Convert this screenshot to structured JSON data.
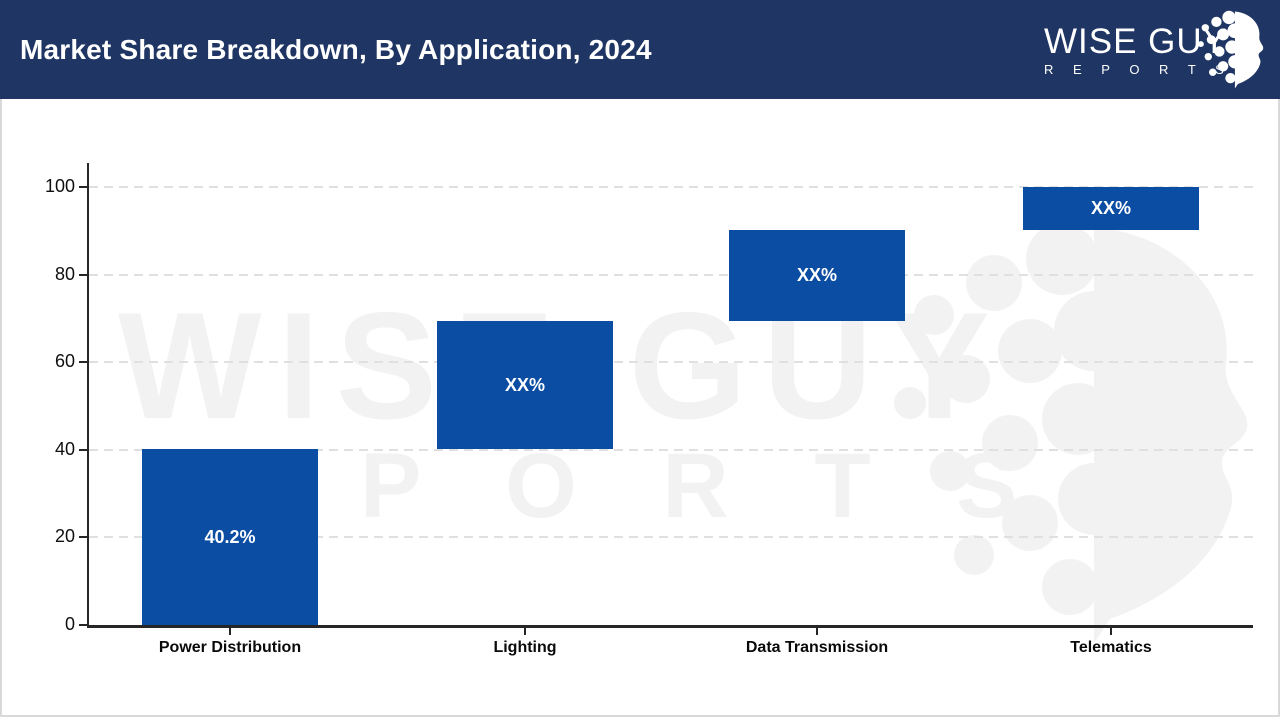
{
  "header": {
    "title": "Market Share Breakdown, By Application, 2024",
    "brand": {
      "line1": "WISE GUY",
      "line2": "R E P O R T S"
    }
  },
  "watermark": {
    "line1": "WISE GUY",
    "line2": "P O R T S"
  },
  "colors": {
    "header_navy": "#1f3563",
    "bar_blue": "#0b4da2",
    "gridline_gray": "#e0e0e0",
    "axis_dark": "#262626",
    "border_gray": "#d9d9d9"
  },
  "chart_data": {
    "type": "bar",
    "subtype": "floating-waterfall",
    "title": "Market Share Breakdown, By Application, 2024",
    "categories": [
      "Power Distribution",
      "Lighting",
      "Data Transmission",
      "Telematics"
    ],
    "segments": [
      {
        "category": "Power Distribution",
        "start": 0,
        "end": 40.2,
        "label": "40.2%"
      },
      {
        "category": "Lighting",
        "start": 40.2,
        "end": 69.4,
        "label": "XX%"
      },
      {
        "category": "Data Transmission",
        "start": 69.4,
        "end": 90.2,
        "label": "XX%"
      },
      {
        "category": "Telematics",
        "start": 90.2,
        "end": 100,
        "label": "XX%"
      }
    ],
    "yticks": [
      0,
      20,
      40,
      60,
      80,
      100
    ],
    "ylim": [
      0,
      105
    ],
    "xlabel": "",
    "ylabel": "",
    "grid": "dashed horizontal",
    "legend": "none",
    "bar_color": "#0b4da2",
    "value_label_color": "#ffffff"
  }
}
